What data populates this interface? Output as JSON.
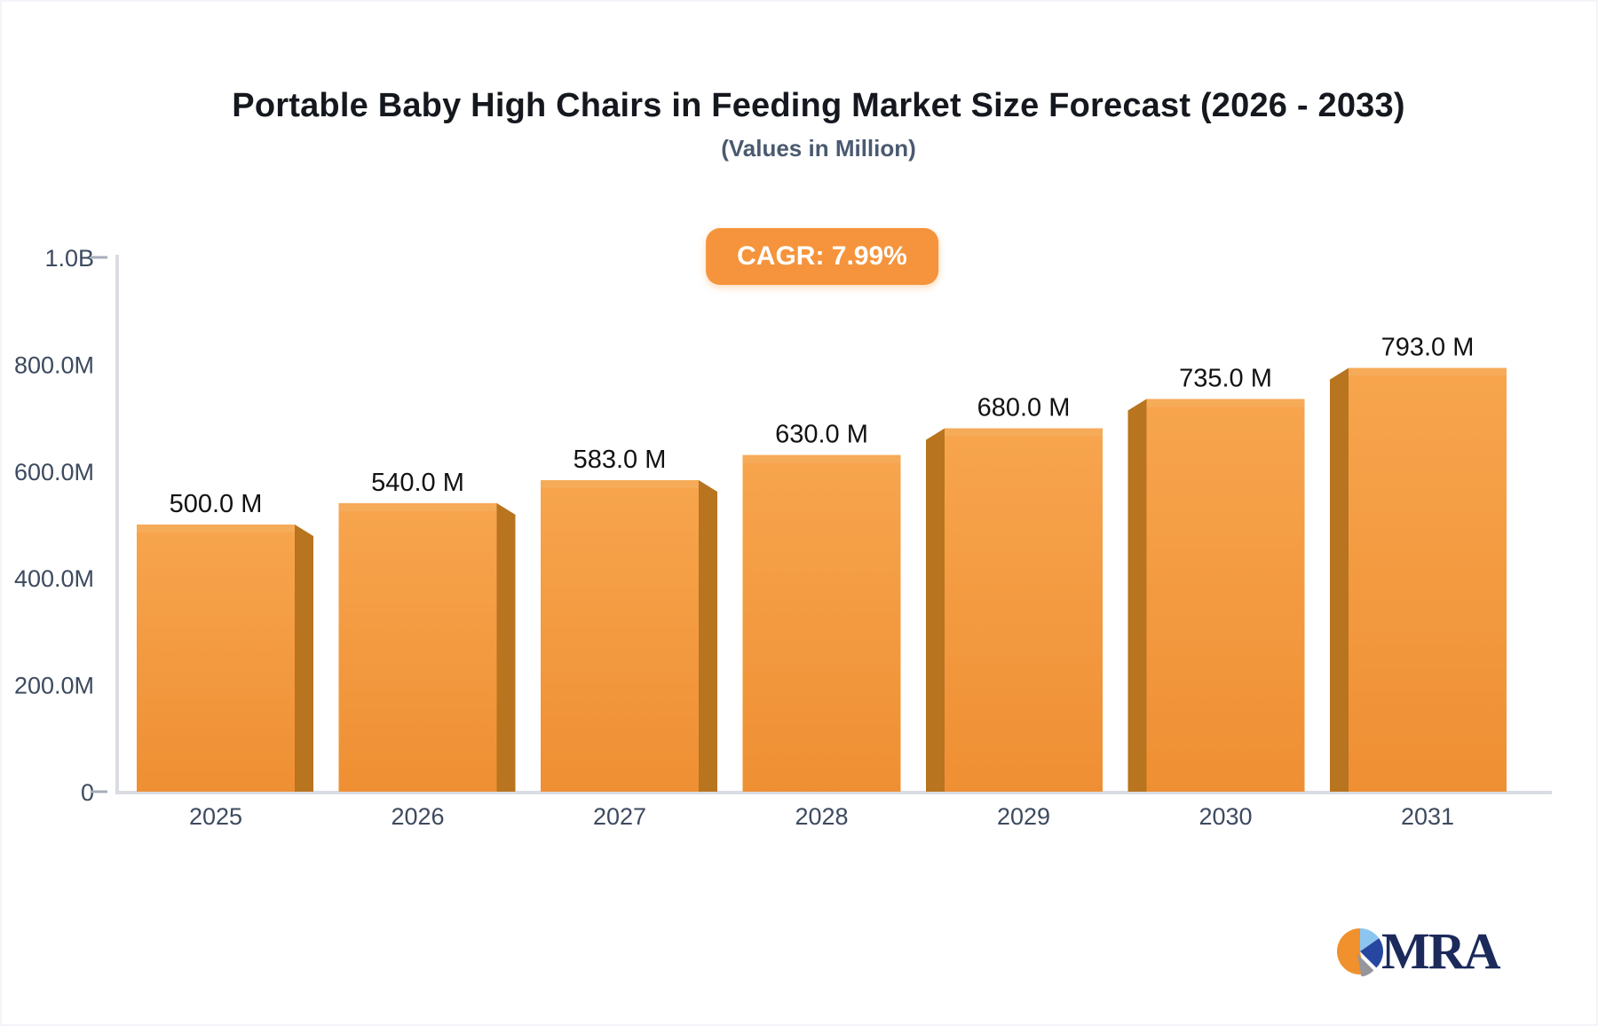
{
  "header": {
    "title": "Portable Baby High Chairs in Feeding Market Size Forecast (2026 - 2033)",
    "subtitle": "(Values in Million)",
    "cagr_label": "CAGR: 7.99%"
  },
  "chart_data": {
    "type": "bar",
    "categories": [
      "2025",
      "2026",
      "2027",
      "2028",
      "2029",
      "2030",
      "2031"
    ],
    "values": [
      500.0,
      540.0,
      583.0,
      630.0,
      680.0,
      735.0,
      793.0
    ],
    "unit": "Million",
    "bar_labels": [
      "500.0 M",
      "540.0 M",
      "583.0 M",
      "630.0 M",
      "680.0 M",
      "735.0 M",
      "793.0 M"
    ],
    "y_ticks": [
      {
        "label": "1.0B",
        "value": 1000,
        "dash": true
      },
      {
        "label": "800.0M",
        "value": 800,
        "dash": false
      },
      {
        "label": "600.0M",
        "value": 600,
        "dash": false
      },
      {
        "label": "400.0M",
        "value": 400,
        "dash": false
      },
      {
        "label": "200.0M",
        "value": 200,
        "dash": false
      },
      {
        "label": "0",
        "value": 0,
        "dash": true
      }
    ],
    "ylim": [
      0,
      1000
    ],
    "xlabel": "",
    "ylabel": "",
    "grid": false,
    "legend": null,
    "style": "3d-bars-orange"
  },
  "logo": {
    "text": "MRA"
  },
  "colors": {
    "bar_face_top": "#f7a54e",
    "bar_face_bottom": "#ef8f33",
    "bar_top_band": "#f6ab58",
    "bar_side": "#b8741f",
    "badge_bg": "#f5943c",
    "axis_line": "#d9dce2",
    "tick_dash": "#a7aeb8",
    "axis_text": "#3d4a5f",
    "value_text": "#121212",
    "title_text": "#15181e",
    "subtitle_text": "#4a5a70",
    "logo_navy": "#1b2a5b",
    "logo_blue": "#2746a0",
    "logo_lightblue": "#8cc6f0",
    "logo_orange": "#f0912d",
    "logo_gray": "#95959c"
  }
}
